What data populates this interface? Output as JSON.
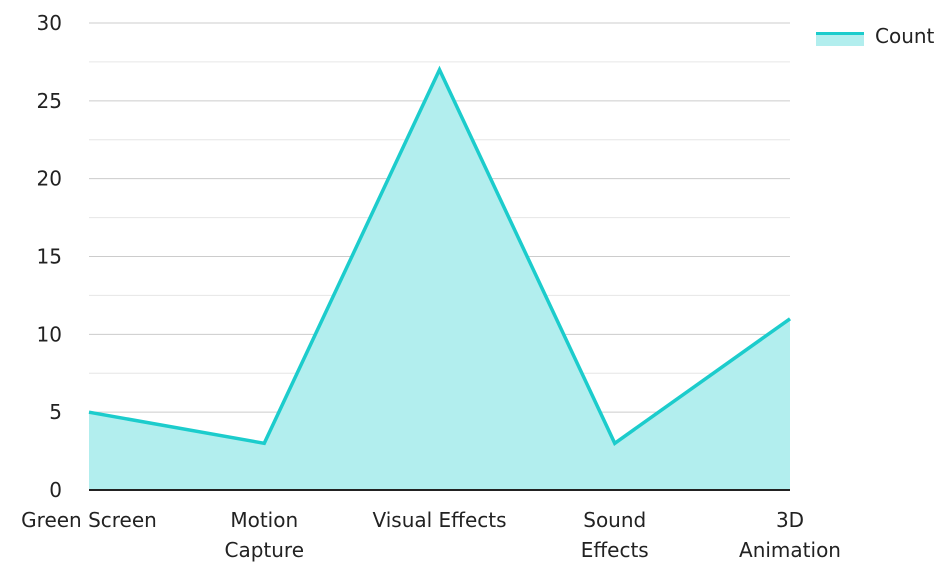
{
  "chart_data": {
    "type": "area",
    "categories": [
      [
        "Green Screen"
      ],
      [
        "Motion",
        "Capture"
      ],
      [
        "Visual Effects"
      ],
      [
        "Sound",
        "Effects"
      ],
      [
        "3D",
        "Animation"
      ]
    ],
    "series": [
      {
        "name": "Count",
        "values": [
          5,
          3,
          27,
          3,
          11
        ]
      }
    ],
    "ylim": [
      0,
      30
    ],
    "yticks": [
      0,
      5,
      10,
      15,
      20,
      25,
      30
    ],
    "grid": true,
    "legend": "top-right",
    "colors": {
      "line": "#1ccccc",
      "fill": "#b2eeee",
      "grid": "#cccccc",
      "axis": "#222222"
    }
  }
}
